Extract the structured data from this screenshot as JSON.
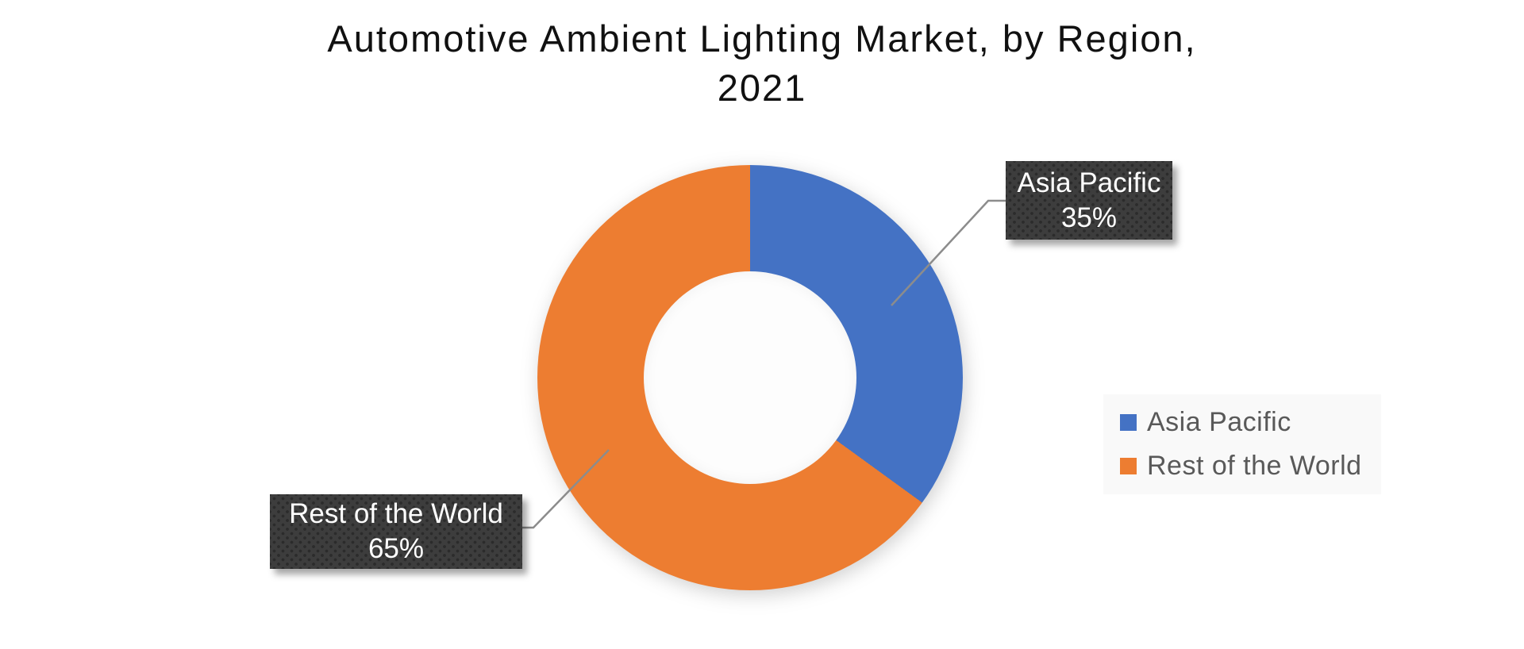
{
  "chart_data": {
    "type": "pie",
    "subtype": "donut",
    "title": "Automotive Ambient Lighting Market, by Region, 2021",
    "title_lines": [
      "Automotive Ambient Lighting Market, by Region,",
      "2021"
    ],
    "categories": [
      "Asia Pacific",
      "Rest of the World"
    ],
    "values": [
      35,
      65
    ],
    "slices": [
      {
        "label": "Asia Pacific",
        "value": 35,
        "value_label": "35%",
        "color": "#4472C4"
      },
      {
        "label": "Rest of the World",
        "value": 65,
        "value_label": "65%",
        "color": "#ED7D31"
      }
    ],
    "start_angle_deg": 0,
    "direction": "clockwise",
    "donut_hole_ratio": 0.5,
    "data_labels": "category name and percentage in dark callout boxes with leader lines",
    "legend": {
      "position": "right",
      "items": [
        "Asia Pacific",
        "Rest of the World"
      ]
    },
    "colors": {
      "callout_background": "#3D3D3D",
      "callout_text": "#FFFFFF",
      "leader_line": "#8C8C8C",
      "legend_text": "#595959",
      "legend_background": "#F9F9F9",
      "title_text": "#111111",
      "page_background": "#FFFFFF"
    }
  }
}
